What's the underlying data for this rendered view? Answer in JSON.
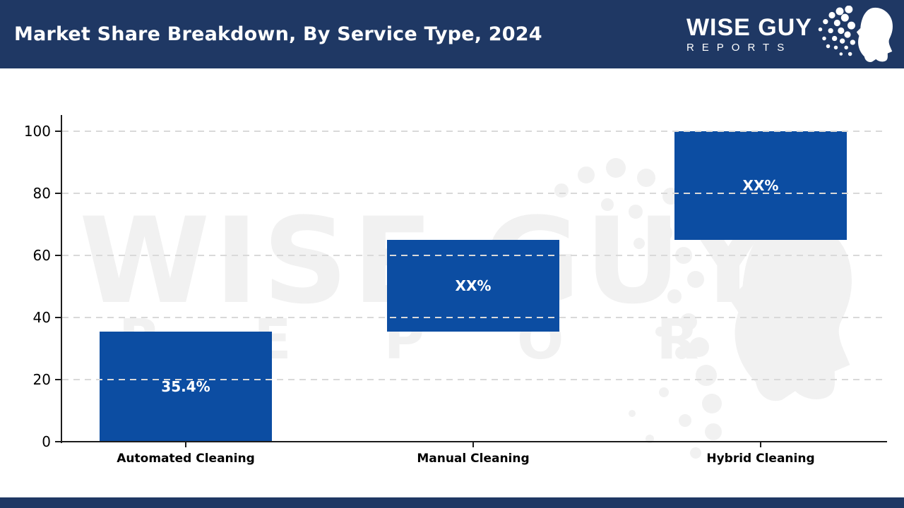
{
  "header": {
    "title": "Market Share Breakdown, By Service Type, 2024",
    "logo": {
      "line1": "WISE GUY",
      "line2": "REPORTS"
    }
  },
  "watermark": {
    "line1": "WISE GUY",
    "line2": "R E P O R T S"
  },
  "colors": {
    "header_bg": "#1f3864",
    "footer_bg": "#1f3864",
    "title_text": "#ffffff",
    "bar_fill": "#0c4da2",
    "bar_label": "#ffffff",
    "gridline": "#d9d9d9",
    "axis": "#1c1c1c",
    "tick_label": "#000000",
    "watermark": "#f1f1f1"
  },
  "chart_data": {
    "type": "bar",
    "variant": "waterfall",
    "title": "Market Share Breakdown, By Service Type, 2024",
    "categories": [
      "Automated Cleaning",
      "Manual Cleaning",
      "Hybrid Cleaning"
    ],
    "series": [
      {
        "name": "Market share (%)",
        "segments": [
          {
            "category": "Automated Cleaning",
            "start": 0,
            "end": 35.4,
            "label": "35.4%"
          },
          {
            "category": "Manual Cleaning",
            "start": 35.4,
            "end": 64.9,
            "label": "XX%"
          },
          {
            "category": "Hybrid Cleaning",
            "start": 64.9,
            "end": 100,
            "label": "XX%"
          }
        ]
      }
    ],
    "xlabel": "",
    "ylabel": "",
    "ylim": [
      0,
      105
    ],
    "yticks": [
      0,
      20,
      40,
      60,
      80,
      100
    ],
    "grid": "horizontal-dashed-over-bars",
    "legend": "none"
  }
}
